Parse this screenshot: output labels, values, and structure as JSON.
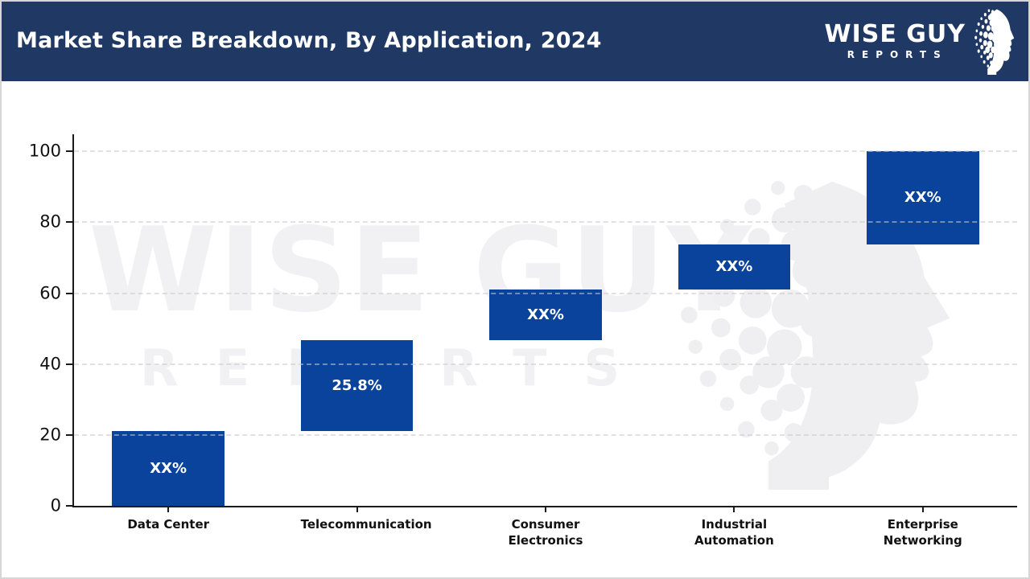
{
  "header": {
    "title": "Market Share Breakdown, By Application, 2024",
    "background_color": "#1f3864",
    "logo": {
      "line1": "WISE GUY",
      "line2": "REPORTS"
    }
  },
  "watermark": {
    "line1": "WISE GUY",
    "line2": "REPORTS"
  },
  "icons": {
    "logo_head": "dotted-head-profile"
  },
  "chart_data": {
    "type": "bar",
    "subtype": "floating-waterfall",
    "title": "Market Share Breakdown, By Application, 2024",
    "categories": [
      "Data Center",
      "Telecommunication",
      "Consumer Electronics",
      "Industrial Automation",
      "Enterprise Networking"
    ],
    "bars": [
      {
        "category": "Data Center",
        "base": 0,
        "top": 21,
        "label": "XX%"
      },
      {
        "category": "Telecommunication",
        "base": 21,
        "top": 46.8,
        "label": "25.8%"
      },
      {
        "category": "Consumer Electronics",
        "base": 46.8,
        "top": 61,
        "label": "XX%"
      },
      {
        "category": "Industrial Automation",
        "base": 61,
        "top": 73.8,
        "label": "XX%"
      },
      {
        "category": "Enterprise Networking",
        "base": 73.8,
        "top": 100,
        "label": "XX%"
      }
    ],
    "yticks": [
      0,
      20,
      40,
      60,
      80,
      100
    ],
    "ylim": [
      0,
      104.8
    ],
    "xlabel": "",
    "ylabel": "",
    "grid": "dashed-horizontal",
    "legend": "none",
    "bar_color": "#09439c",
    "bar_label_color": "#ffffff"
  }
}
